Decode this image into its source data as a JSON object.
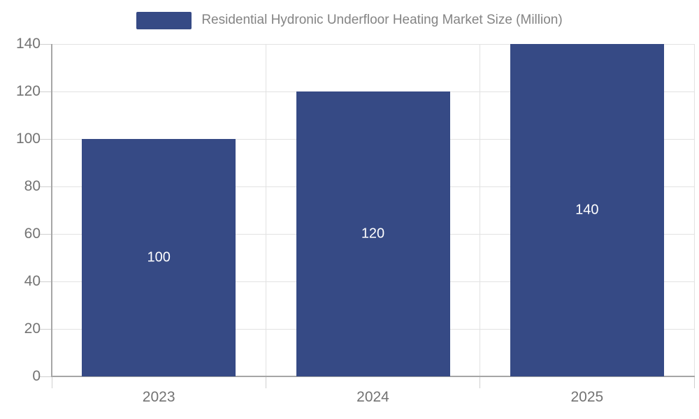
{
  "legend": {
    "label": "Residential Hydronic Underfloor Heating Market Size (Million)"
  },
  "chart_data": {
    "type": "bar",
    "title": "Residential Hydronic Underfloor Heating Market Size (Million)",
    "series": [
      {
        "name": "Residential Hydronic Underfloor Heating Market Size (Million)",
        "values": [
          100,
          120,
          140
        ]
      }
    ],
    "categories": [
      "2023",
      "2024",
      "2025"
    ],
    "data_labels": [
      "100",
      "120",
      "140"
    ],
    "xlabel": "",
    "ylabel": "",
    "ylim": [
      0,
      140
    ],
    "yticks": [
      0,
      20,
      40,
      60,
      80,
      100,
      120,
      140
    ],
    "grid": true,
    "legend_position": "top"
  },
  "style": {
    "bar_color": "#364a85",
    "data_label_color": "#ffffff",
    "grid_color": "#e2e2e2",
    "tick_color": "#cfcfcf",
    "axis_line_color": "#a6a6a6",
    "axis_label_color": "#737373",
    "legend_text_color": "#848484",
    "background_color": "#ffffff"
  }
}
